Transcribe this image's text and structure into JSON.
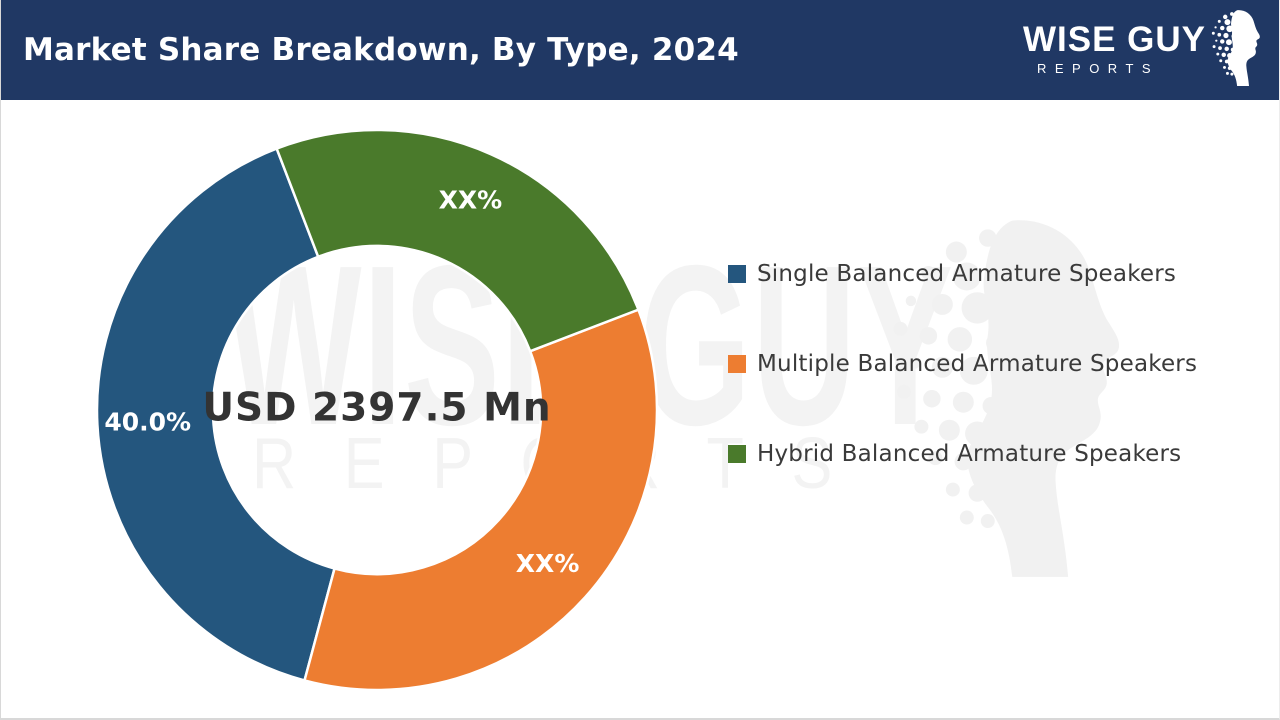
{
  "header": {
    "title": "Market Share Breakdown, By Type, 2024",
    "bg_color": "#203864",
    "logo": {
      "name": "WISE GUY",
      "sub": "REPORTS"
    }
  },
  "watermark": {
    "line1": "WISE GUY",
    "line2": "REPORTS"
  },
  "chart_data": {
    "type": "pie",
    "subtype": "donut",
    "title": "Market Share Breakdown, By Type, 2024",
    "center_label": "USD 2397.5 Mn",
    "start_angle_deg": 111,
    "direction": "counterclockwise",
    "inner_radius_ratio": 0.586,
    "outer_radius_px": 280,
    "legend_position": "right",
    "segments": [
      {
        "name": "Single Balanced Armature Speakers",
        "value_pct": 40.0,
        "label": "40.0%",
        "color": "#24567E"
      },
      {
        "name": "Multiple Balanced Armature Speakers",
        "value_pct": 35.0,
        "label": "XX%",
        "color": "#ED7D31"
      },
      {
        "name": "Hybrid Balanced Armature Speakers",
        "value_pct": 25.0,
        "label": "XX%",
        "color": "#4A7A2B"
      }
    ],
    "colors": {
      "header_bg": "#203864",
      "center_text": "#333333",
      "legend_text": "#3A3A3A",
      "slice_separator": "#FFFFFF"
    }
  }
}
